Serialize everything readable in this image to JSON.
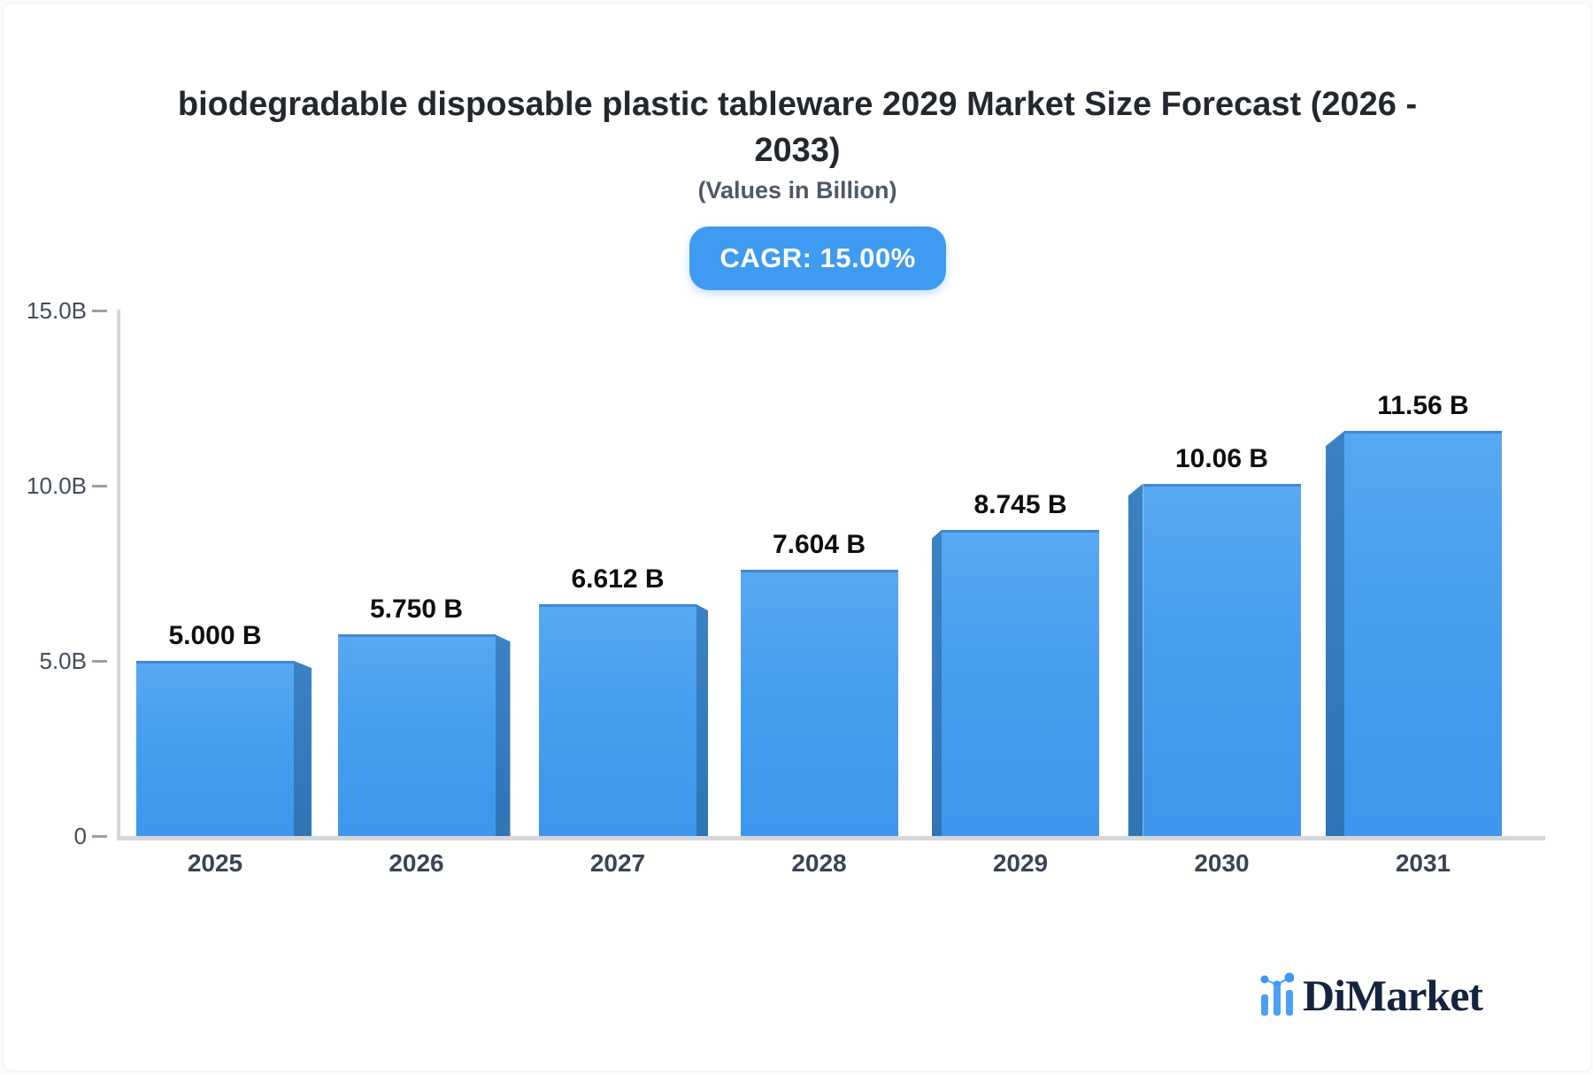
{
  "header": {
    "title": "biodegradable disposable plastic tableware 2029 Market Size Forecast (2026 - 2033)",
    "subtitle": "(Values in Billion)",
    "cagr_badge": "CAGR: 15.00%"
  },
  "brand": {
    "name": "DiMarket",
    "icon": "bar-chart-logo-icon"
  },
  "colors": {
    "accent_blue": "#3f9bf1",
    "bar_front_top": "#58a8f2",
    "bar_front_bottom": "#3e96ee",
    "bar_side": "#2f75b6",
    "axis_gray": "#d4d7dc",
    "tick_gray": "#9aa1ac",
    "text_dark": "#23272e",
    "logo_navy": "#15243e"
  },
  "chart_data": {
    "type": "bar",
    "title": "biodegradable disposable plastic tableware 2029 Market Size Forecast (2026 - 2033)",
    "subtitle": "(Values in Billion)",
    "annotation": "CAGR: 15.00%",
    "categories": [
      "2025",
      "2026",
      "2027",
      "2028",
      "2029",
      "2030",
      "2031"
    ],
    "values": [
      5.0,
      5.75,
      6.612,
      7.604,
      8.745,
      10.06,
      11.56
    ],
    "value_labels": [
      "5.000 B",
      "5.750 B",
      "6.612 B",
      "7.604 B",
      "8.745 B",
      "10.06 B",
      "11.56 B"
    ],
    "xlabel": "",
    "ylabel": "",
    "ylim": [
      0,
      15
    ],
    "y_ticks": [
      {
        "value": 15,
        "label": "15.0B"
      },
      {
        "value": 10,
        "label": "10.0B"
      },
      {
        "value": 5,
        "label": "5.0B"
      },
      {
        "value": 0,
        "label": "0"
      }
    ],
    "grid": false,
    "legend": false,
    "style": "3d-extruded-bars"
  }
}
